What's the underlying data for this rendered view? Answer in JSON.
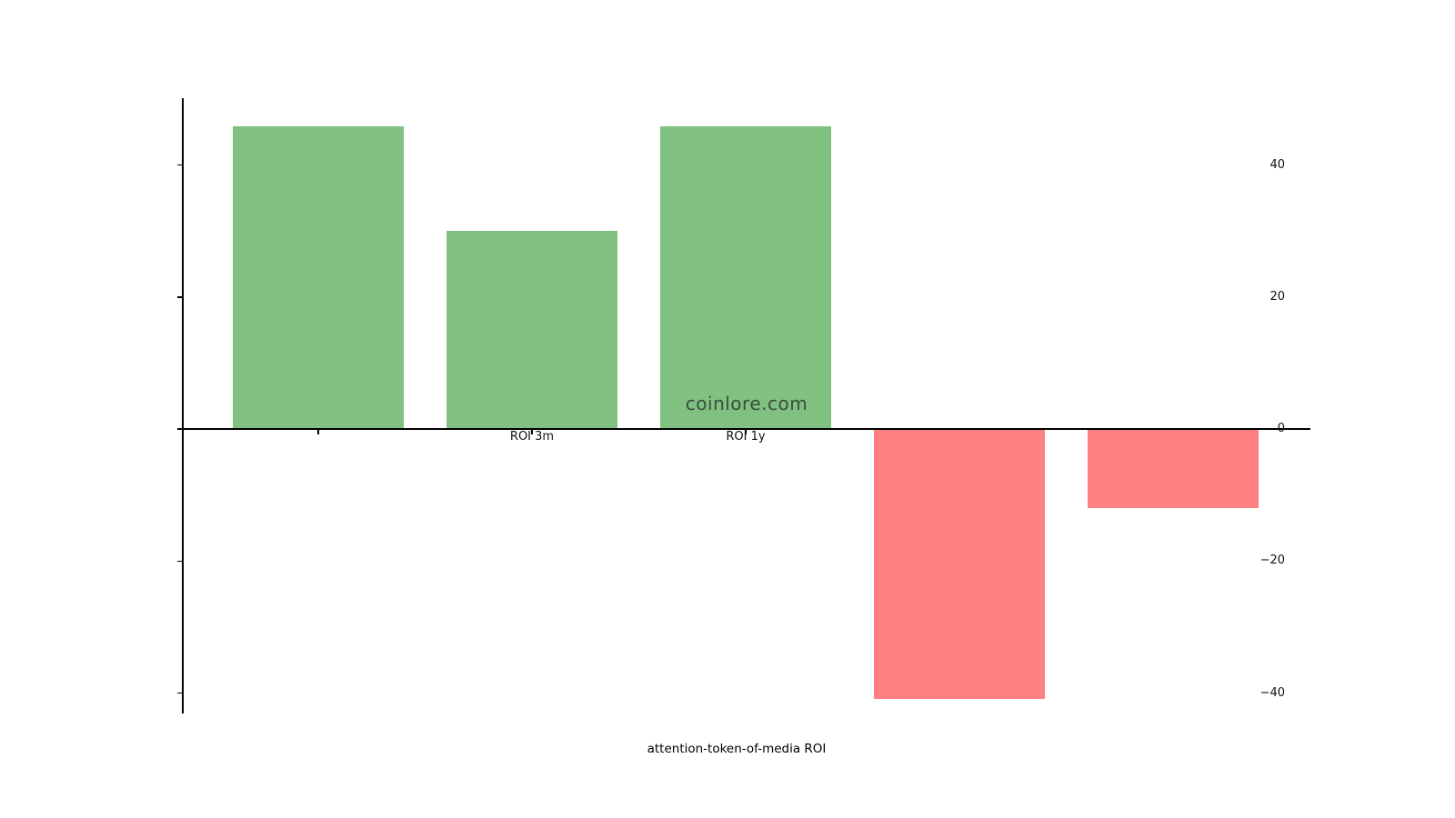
{
  "page": {
    "background": "#ffffff"
  },
  "chart_data": {
    "type": "bar",
    "title": "attention-token-of-media ROI",
    "watermark": "coinlore.com",
    "categories": [
      "",
      "ROI 3m",
      "ROI 1y",
      "",
      ""
    ],
    "values": [
      45.8,
      30,
      45.8,
      -40.9,
      -12
    ],
    "bar_colors": {
      "positive": "#80C080",
      "negative": "#FF8080"
    },
    "yticks": [
      {
        "label": "40",
        "value": 40
      },
      {
        "label": "20",
        "value": 20
      },
      {
        "label": "0",
        "value": 0
      },
      {
        "label": "−20",
        "value": -20
      },
      {
        "label": "−40",
        "value": -40
      }
    ],
    "ylim": [
      -43,
      50
    ],
    "xlabel": "",
    "ylabel": "",
    "grid": false,
    "legend": null,
    "axis_color": "#000000",
    "title_color": "#000000",
    "watermark_color": "#2d3a32"
  }
}
